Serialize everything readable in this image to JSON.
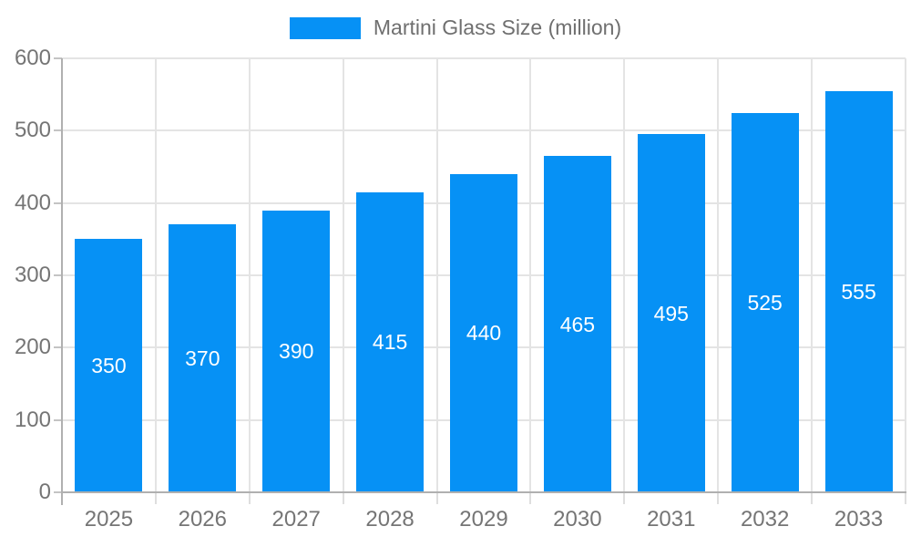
{
  "chart_data": {
    "type": "bar",
    "title": "Martini Glass Size (million)",
    "legend": {
      "label": "Martini Glass Size (million)",
      "position": "top"
    },
    "categories": [
      "2025",
      "2026",
      "2027",
      "2028",
      "2029",
      "2030",
      "2031",
      "2032",
      "2033"
    ],
    "values": [
      350,
      370,
      390,
      415,
      440,
      465,
      495,
      525,
      555
    ],
    "bar_value_labels": [
      "350",
      "370",
      "390",
      "415",
      "440",
      "465",
      "495",
      "525",
      "555"
    ],
    "xlabel": "",
    "ylabel": "",
    "ylim": [
      0,
      600
    ],
    "yticks": [
      0,
      100,
      200,
      300,
      400,
      500,
      600
    ],
    "grid": true,
    "colors": {
      "bar": "#0691f5",
      "bar_label_text": "#ffffff",
      "axis_text": "#757575",
      "legend_text": "#6f6f6f",
      "gridline": "#e4e4e4",
      "axis_line": "#b0b0b0",
      "background": "#ffffff"
    }
  }
}
